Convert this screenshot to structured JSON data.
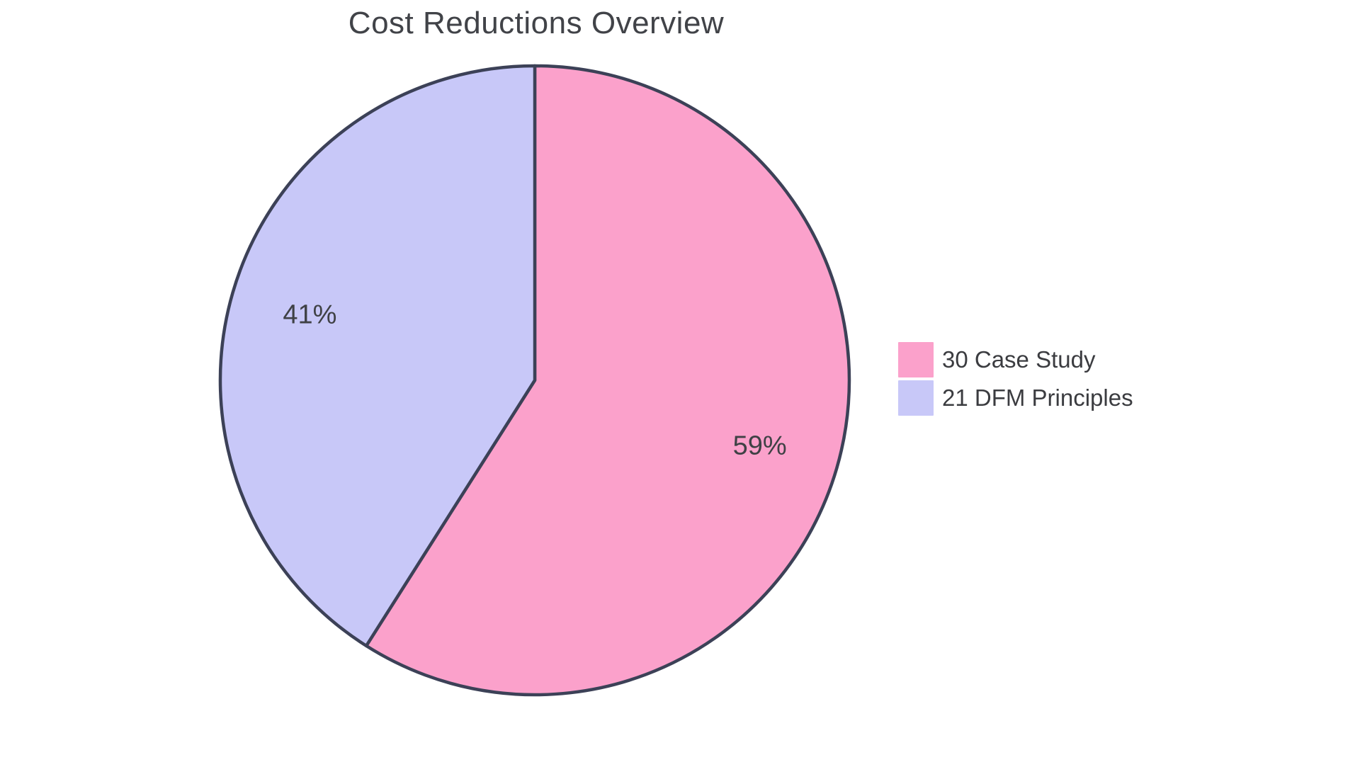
{
  "title": "Cost Reductions Overview",
  "colors": {
    "background": "#ffffff",
    "title_text": "#414348",
    "percent_label_text": "#3f4145",
    "legend_text": "#3b3c40",
    "slice_stroke": "#3c4157"
  },
  "chart_data": {
    "type": "pie",
    "title": "Cost Reductions Overview",
    "start_angle_deg": 0,
    "direction": "clockwise",
    "legend_position": "right",
    "stroke_color": "#3c4157",
    "slices": [
      {
        "label": "30 Case Study",
        "value": 59,
        "display": "59%",
        "color": "#fba1cb"
      },
      {
        "label": "21 DFM Principles",
        "value": 41,
        "display": "41%",
        "color": "#c8c8f8"
      }
    ]
  }
}
